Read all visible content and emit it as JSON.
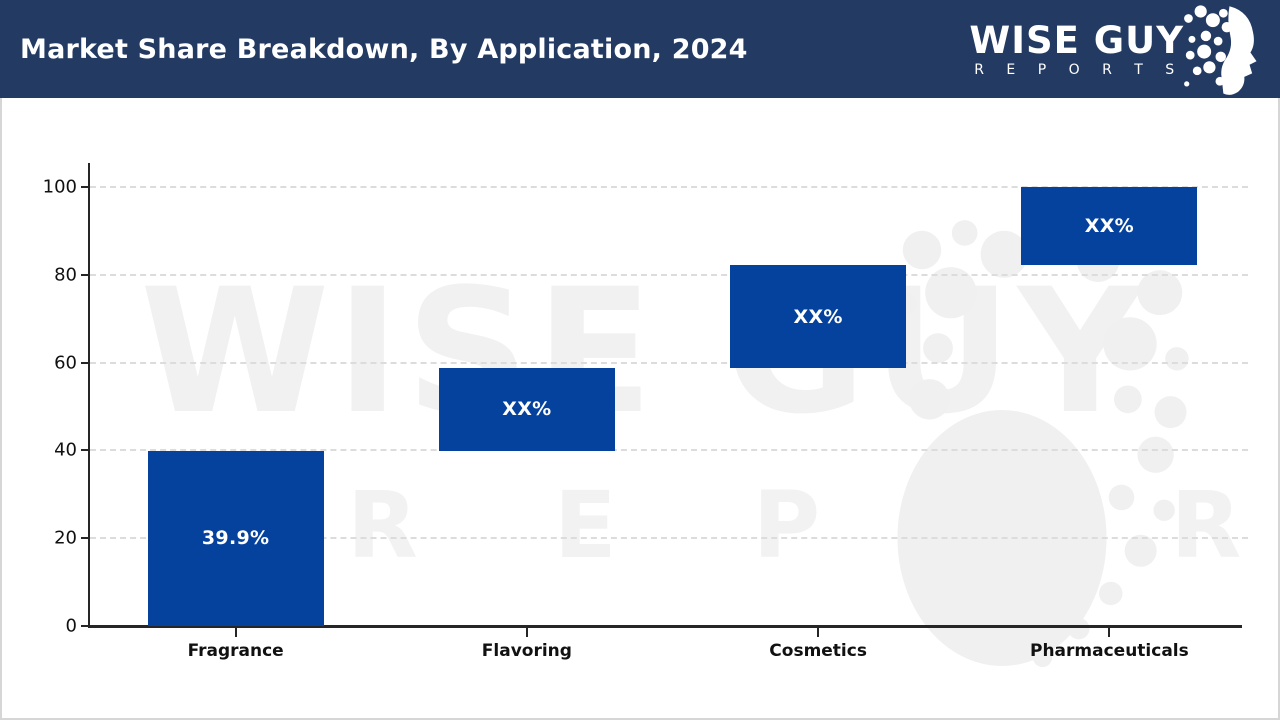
{
  "header": {
    "title": "Market Share Breakdown, By Application, 2024",
    "logo": {
      "line1": "WISE GUY",
      "line2": "R E P O R T S"
    }
  },
  "watermark": {
    "line1": "WISE GUY",
    "line2": "R E P O R T S"
  },
  "colors": {
    "header_background": "#233a63",
    "bar_blue": "#05429d",
    "axis": "#262626",
    "gridline": "#dcdcdc",
    "bar_label_text": "#ffffff",
    "watermark_gray": "#f1f1f1",
    "frame_border": "#d6d6d6"
  },
  "chart_data": {
    "type": "bar",
    "subtype": "waterfall",
    "title": "Market Share Breakdown, By Application, 2024",
    "categories": [
      "Fragrance",
      "Flavoring",
      "Cosmetics",
      "Pharmaceuticals"
    ],
    "segments": [
      {
        "start": 0,
        "end": 39.9,
        "label": "39.9%"
      },
      {
        "start": 39.9,
        "end": 58.8,
        "label": "XX%"
      },
      {
        "start": 58.8,
        "end": 82.2,
        "label": "XX%"
      },
      {
        "start": 82.2,
        "end": 100.0,
        "label": "XX%"
      }
    ],
    "bar_labels": [
      "39.9%",
      "XX%",
      "XX%",
      "XX%"
    ],
    "xlabel": "",
    "ylabel": "",
    "ylim": [
      0,
      100
    ],
    "yticks": [
      0,
      20,
      40,
      60,
      80,
      100
    ],
    "grid": "horizontal-dashed",
    "legend": "none",
    "bar_color": "#05429d"
  }
}
